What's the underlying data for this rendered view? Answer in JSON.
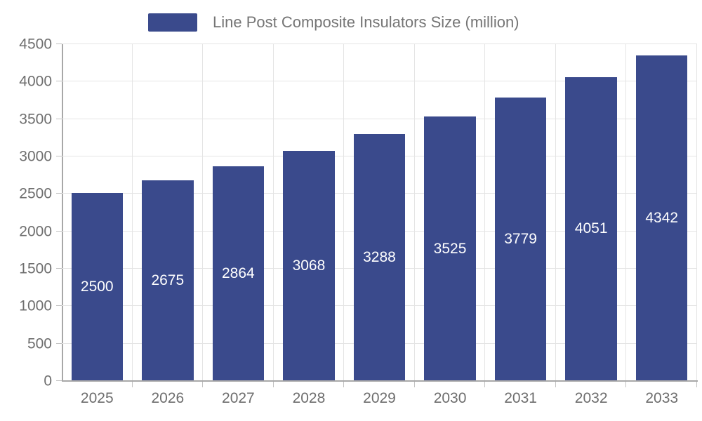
{
  "chart_data": {
    "type": "bar",
    "title": "Line Post Composite Insulators Size (million)",
    "legend": {
      "label": "Line Post Composite Insulators Size (million)",
      "position": "top"
    },
    "categories": [
      "2025",
      "2026",
      "2027",
      "2028",
      "2029",
      "2030",
      "2031",
      "2032",
      "2033"
    ],
    "values": [
      2500,
      2675,
      2864,
      3068,
      3288,
      3525,
      3779,
      4051,
      4342
    ],
    "value_labels": [
      "2500",
      "2675",
      "2864",
      "3068",
      "3288",
      "3525",
      "3779",
      "4051",
      "4342"
    ],
    "value_label_position": "inside-center",
    "xlabel": "",
    "ylabel": "",
    "ylim": [
      0,
      4500
    ],
    "yticks": [
      0,
      500,
      1000,
      1500,
      2000,
      2500,
      3000,
      3500,
      4000,
      4500
    ],
    "grid": true,
    "colors": {
      "bar": "#3A4A8C",
      "bar_value_label": "#FFFFFF",
      "axis_text": "#6E6E6E",
      "legend_text": "#757575",
      "grid_line": "#E4E4E4",
      "axis_line": "#A8A8A8",
      "tick": "#C2C2C2",
      "background": "#FFFFFF"
    }
  }
}
